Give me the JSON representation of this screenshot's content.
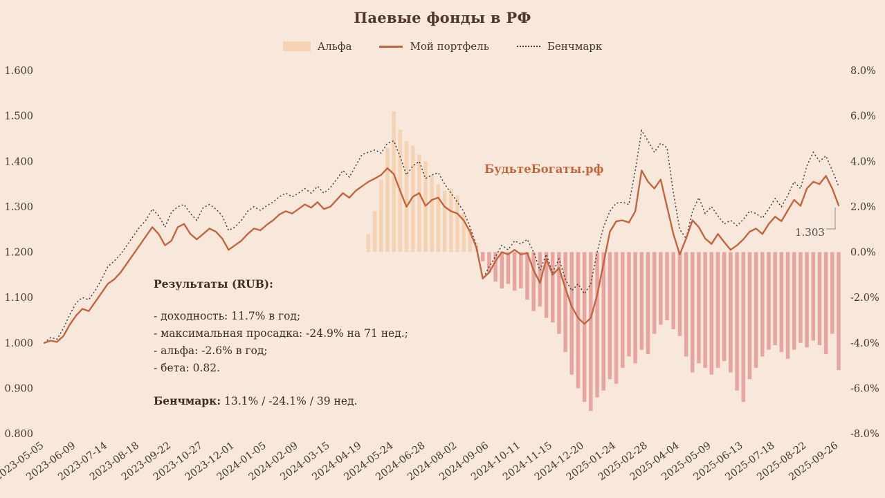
{
  "page": {
    "title": "Паевые фонды в РФ",
    "watermark": "БудьтеБогаты.рф",
    "background": "#f7e8db"
  },
  "legend": [
    {
      "label": "Альфа",
      "type": "bar",
      "color": "#f5d2b3"
    },
    {
      "label": "Мой портфель",
      "type": "line",
      "color": "#c2653e"
    },
    {
      "label": "Бенчмарк",
      "type": "dotted-line",
      "color": "#3a3a3a"
    }
  ],
  "results_panel": {
    "heading": "Результаты (RUB):",
    "lines": [
      "- доходность: 11.7% в год;",
      "- максимальная просадка: -24.9% на 71 нед.;",
      "- альфа: -2.6% в год;",
      "- бета: 0.82."
    ],
    "benchmark_label": "Бенчмарк:",
    "benchmark_value": " 13.1% / -24.1% / 39 нед."
  },
  "annotation": {
    "label": "1.303"
  },
  "chart_data": {
    "type": "mixed",
    "title": "Паевые фонды в РФ",
    "x_start": "2023-05-05",
    "x_step": "weekly",
    "x_tick_every": 5,
    "x_tick_labels": [
      "2023-05-05",
      "2023-06-09",
      "2023-07-14",
      "2023-08-18",
      "2023-09-22",
      "2023-10-27",
      "2023-12-01",
      "2024-01-05",
      "2024-02-09",
      "2024-03-15",
      "2024-04-19",
      "2024-05-24",
      "2024-06-28",
      "2024-08-02",
      "2024-09-06",
      "2024-10-11",
      "2024-11-15",
      "2024-12-20",
      "2025-01-24",
      "2025-02-28",
      "2025-04-04",
      "2025-05-09",
      "2025-06-13",
      "2025-07-18",
      "2025-08-22",
      "2025-09-26"
    ],
    "y_left": {
      "min": 0.8,
      "max": 1.6,
      "ticks": [
        "1.600",
        "1.500",
        "1.400",
        "1.300",
        "1.200",
        "1.100",
        "1.000",
        "0.900",
        "0.800"
      ]
    },
    "y_right": {
      "min": -8,
      "max": 8,
      "ticks": [
        "8.0%",
        "6.0%",
        "4.0%",
        "2.0%",
        "0.0%",
        "-2.0%",
        "-4.0%",
        "-6.0%",
        "-8.0%"
      ]
    },
    "grid": false,
    "legend_position": "top",
    "series": [
      {
        "name": "Альфа",
        "type": "bar",
        "axis": "right",
        "color_positive": "#f5d2b3",
        "color_negative": "#e7a5a2",
        "values": [
          0,
          0,
          0,
          0,
          0,
          0,
          0,
          0,
          0,
          0,
          0,
          0,
          0,
          0,
          0,
          0,
          0,
          0,
          0,
          0,
          0,
          0,
          0,
          0,
          0,
          0,
          0,
          0,
          0,
          0,
          0,
          0,
          0,
          0,
          0,
          0,
          0,
          0,
          0,
          0,
          0,
          0,
          0,
          0,
          0,
          0,
          0,
          0,
          0,
          0,
          0,
          0.8,
          1.8,
          3.2,
          4.6,
          6.2,
          5.4,
          4.9,
          4.7,
          4.3,
          4.0,
          3.4,
          3.0,
          2.7,
          2.8,
          2.5,
          1.7,
          1.0,
          0.4,
          -0.4,
          -0.9,
          -1.3,
          -1.6,
          -1.4,
          -1.7,
          -1.6,
          -2.1,
          -2.6,
          -2.4,
          -2.9,
          -3.1,
          -3.6,
          -4.4,
          -5.4,
          -6.0,
          -6.6,
          -7.0,
          -6.4,
          -6.1,
          -5.6,
          -5.8,
          -5.1,
          -4.6,
          -4.9,
          -4.3,
          -4.5,
          -3.6,
          -3.2,
          -3.0,
          -3.4,
          -3.7,
          -4.6,
          -5.3,
          -4.9,
          -5.1,
          -5.4,
          -5.1,
          -4.8,
          -5.3,
          -6.1,
          -6.6,
          -5.6,
          -5.1,
          -4.6,
          -4.3,
          -4.1,
          -4.4,
          -4.7,
          -4.3,
          -4.0,
          -4.2,
          -3.9,
          -4.1,
          -4.5,
          -3.6,
          -5.2
        ]
      },
      {
        "name": "Мой портфель",
        "type": "line",
        "axis": "left",
        "color": "#c2653e",
        "last_value": 1.303,
        "values": [
          1.0,
          1.005,
          1.002,
          1.015,
          1.04,
          1.06,
          1.075,
          1.07,
          1.09,
          1.11,
          1.13,
          1.14,
          1.155,
          1.175,
          1.195,
          1.215,
          1.235,
          1.255,
          1.24,
          1.215,
          1.225,
          1.255,
          1.262,
          1.24,
          1.228,
          1.24,
          1.252,
          1.245,
          1.23,
          1.205,
          1.215,
          1.225,
          1.24,
          1.252,
          1.248,
          1.26,
          1.27,
          1.283,
          1.29,
          1.285,
          1.295,
          1.305,
          1.298,
          1.31,
          1.295,
          1.3,
          1.315,
          1.33,
          1.32,
          1.335,
          1.345,
          1.355,
          1.362,
          1.37,
          1.385,
          1.372,
          1.335,
          1.3,
          1.322,
          1.33,
          1.302,
          1.315,
          1.32,
          1.3,
          1.29,
          1.285,
          1.27,
          1.245,
          1.21,
          1.142,
          1.155,
          1.18,
          1.2,
          1.195,
          1.205,
          1.195,
          1.198,
          1.16,
          1.132,
          1.185,
          1.15,
          1.165,
          1.12,
          1.08,
          1.055,
          1.042,
          1.055,
          1.105,
          1.175,
          1.245,
          1.268,
          1.27,
          1.265,
          1.29,
          1.38,
          1.355,
          1.34,
          1.36,
          1.3,
          1.24,
          1.195,
          1.23,
          1.27,
          1.255,
          1.23,
          1.218,
          1.24,
          1.222,
          1.205,
          1.215,
          1.228,
          1.245,
          1.252,
          1.24,
          1.262,
          1.278,
          1.268,
          1.292,
          1.315,
          1.302,
          1.34,
          1.355,
          1.35,
          1.368,
          1.34,
          1.303
        ]
      },
      {
        "name": "Бенчмарк",
        "type": "dotted-line",
        "axis": "left",
        "color": "#3a3a3a",
        "values": [
          1.0,
          1.012,
          1.008,
          1.032,
          1.062,
          1.088,
          1.1,
          1.095,
          1.115,
          1.14,
          1.168,
          1.18,
          1.195,
          1.215,
          1.235,
          1.255,
          1.27,
          1.295,
          1.28,
          1.255,
          1.288,
          1.3,
          1.305,
          1.285,
          1.27,
          1.298,
          1.305,
          1.295,
          1.28,
          1.248,
          1.255,
          1.27,
          1.29,
          1.3,
          1.292,
          1.302,
          1.31,
          1.322,
          1.33,
          1.322,
          1.33,
          1.34,
          1.33,
          1.345,
          1.33,
          1.342,
          1.36,
          1.38,
          1.365,
          1.39,
          1.415,
          1.42,
          1.425,
          1.418,
          1.44,
          1.445,
          1.41,
          1.37,
          1.39,
          1.4,
          1.362,
          1.37,
          1.375,
          1.35,
          1.33,
          1.31,
          1.29,
          1.255,
          1.215,
          1.14,
          1.168,
          1.19,
          1.215,
          1.205,
          1.225,
          1.218,
          1.228,
          1.2,
          1.16,
          1.195,
          1.155,
          1.185,
          1.14,
          1.115,
          1.13,
          1.108,
          1.13,
          1.2,
          1.255,
          1.29,
          1.308,
          1.31,
          1.305,
          1.38,
          1.468,
          1.445,
          1.42,
          1.44,
          1.43,
          1.33,
          1.25,
          1.23,
          1.29,
          1.32,
          1.285,
          1.3,
          1.28,
          1.262,
          1.27,
          1.258,
          1.272,
          1.29,
          1.285,
          1.275,
          1.295,
          1.318,
          1.3,
          1.325,
          1.355,
          1.34,
          1.39,
          1.42,
          1.4,
          1.412,
          1.38,
          1.345
        ]
      }
    ]
  }
}
